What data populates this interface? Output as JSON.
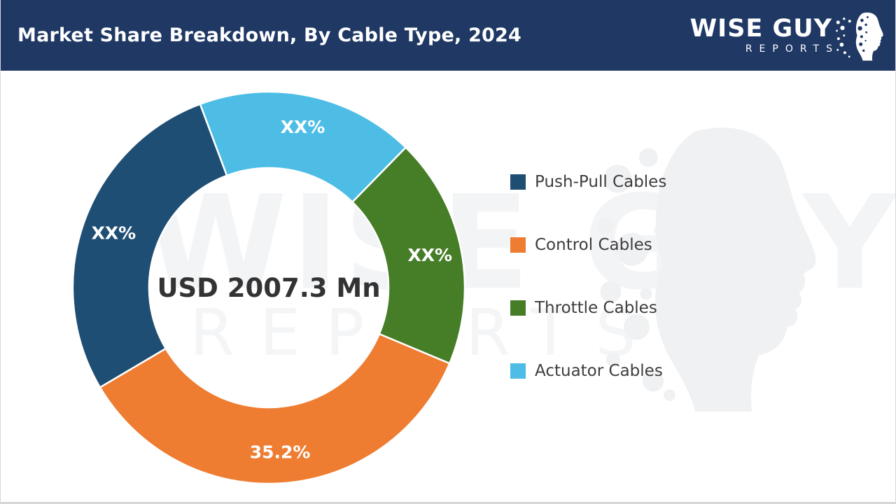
{
  "header": {
    "title": "Market Share Breakdown, By Cable Type, 2024",
    "bg_color": "#1f3864",
    "logo": {
      "line1": "WISE GUY",
      "line2": "REPORTS"
    }
  },
  "watermark": {
    "line1": "WISE GUY",
    "line2": "REPORTS"
  },
  "chart_data": {
    "type": "pie",
    "subtype": "donut",
    "title": "Market Share Breakdown, By Cable Type, 2024",
    "center_label": "USD 2007.3 Mn",
    "start_angle_deg": 110.5,
    "direction": "counterclockwise",
    "inner_radius_ratio": 0.61,
    "legend_position": "right",
    "segments": [
      {
        "label": "Push-Pull Cables",
        "share_pct": 27.8,
        "display": "XX%",
        "color": "#1f4e74"
      },
      {
        "label": "Control Cables",
        "share_pct": 35.2,
        "display": "35.2%",
        "color": "#ee7d31"
      },
      {
        "label": "Throttle Cables",
        "share_pct": 19.0,
        "display": "XX%",
        "color": "#467d27"
      },
      {
        "label": "Actuator Cables",
        "share_pct": 18.0,
        "display": "XX%",
        "color": "#4dbde6"
      }
    ]
  }
}
